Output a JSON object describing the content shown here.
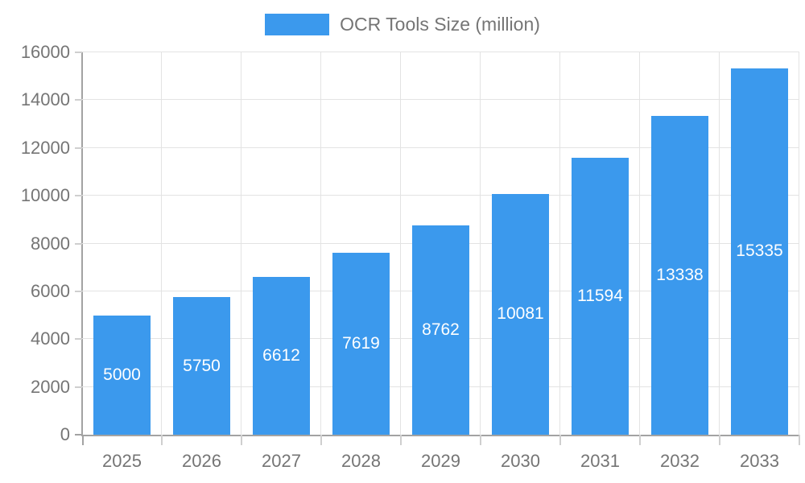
{
  "legend": {
    "label": "OCR Tools Size (million)"
  },
  "chart_data": {
    "type": "bar",
    "title": "OCR Tools Size (million)",
    "series_name": "OCR Tools Size (million)",
    "categories": [
      "2025",
      "2026",
      "2027",
      "2028",
      "2029",
      "2030",
      "2031",
      "2032",
      "2033"
    ],
    "values": [
      5000,
      5750,
      6612,
      7619,
      8762,
      10081,
      11594,
      13338,
      15335
    ],
    "xlabel": "",
    "ylabel": "",
    "ylim": [
      0,
      16000
    ],
    "ytick_step": 2000,
    "ytick_labels": [
      "0",
      "2000",
      "4000",
      "6000",
      "8000",
      "10000",
      "12000",
      "14000",
      "16000"
    ],
    "grid": true,
    "legend_position": "top-center",
    "bar_value_labels": "inside-center",
    "colors": {
      "bar": "#3B99ED",
      "bar_label": "#FFFFFF",
      "axis_text": "#757575",
      "axis_line": "#A3A3A3",
      "gridline": "#E3E3E3",
      "tick": "#CFCFCF",
      "background": "#FFFFFF"
    }
  }
}
